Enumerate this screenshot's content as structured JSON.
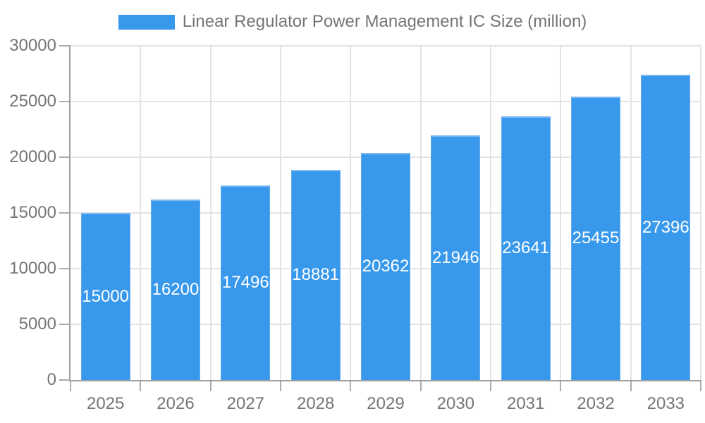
{
  "legend": {
    "label": "Linear Regulator Power Management IC Size (million)"
  },
  "chart_data": {
    "type": "bar",
    "title": "Linear Regulator Power Management IC Size (million)",
    "categories": [
      "2025",
      "2026",
      "2027",
      "2028",
      "2029",
      "2030",
      "2031",
      "2032",
      "2033"
    ],
    "series": [
      {
        "name": "Linear Regulator Power Management IC Size (million)",
        "values": [
          15000,
          16200,
          17496,
          18881,
          20362,
          21946,
          23641,
          25455,
          27396
        ],
        "color": "#3899EC"
      }
    ],
    "xlabel": "",
    "ylabel": "",
    "ylim": [
      0,
      30000
    ],
    "yticks": [
      0,
      5000,
      10000,
      15000,
      20000,
      25000,
      30000
    ],
    "grid": true,
    "legend_position": "top",
    "value_labels": "inside-center",
    "value_label_color": "#FFFFFF"
  },
  "colors": {
    "bar": "#3899EC",
    "bar_edge": "#7DBAF1",
    "grid": "#E3E3E3",
    "axis": "#9E9E9E",
    "tick": "#ABABAB",
    "text": "#757575",
    "value_text": "#FFFFFF",
    "background": "#FFFFFF"
  }
}
